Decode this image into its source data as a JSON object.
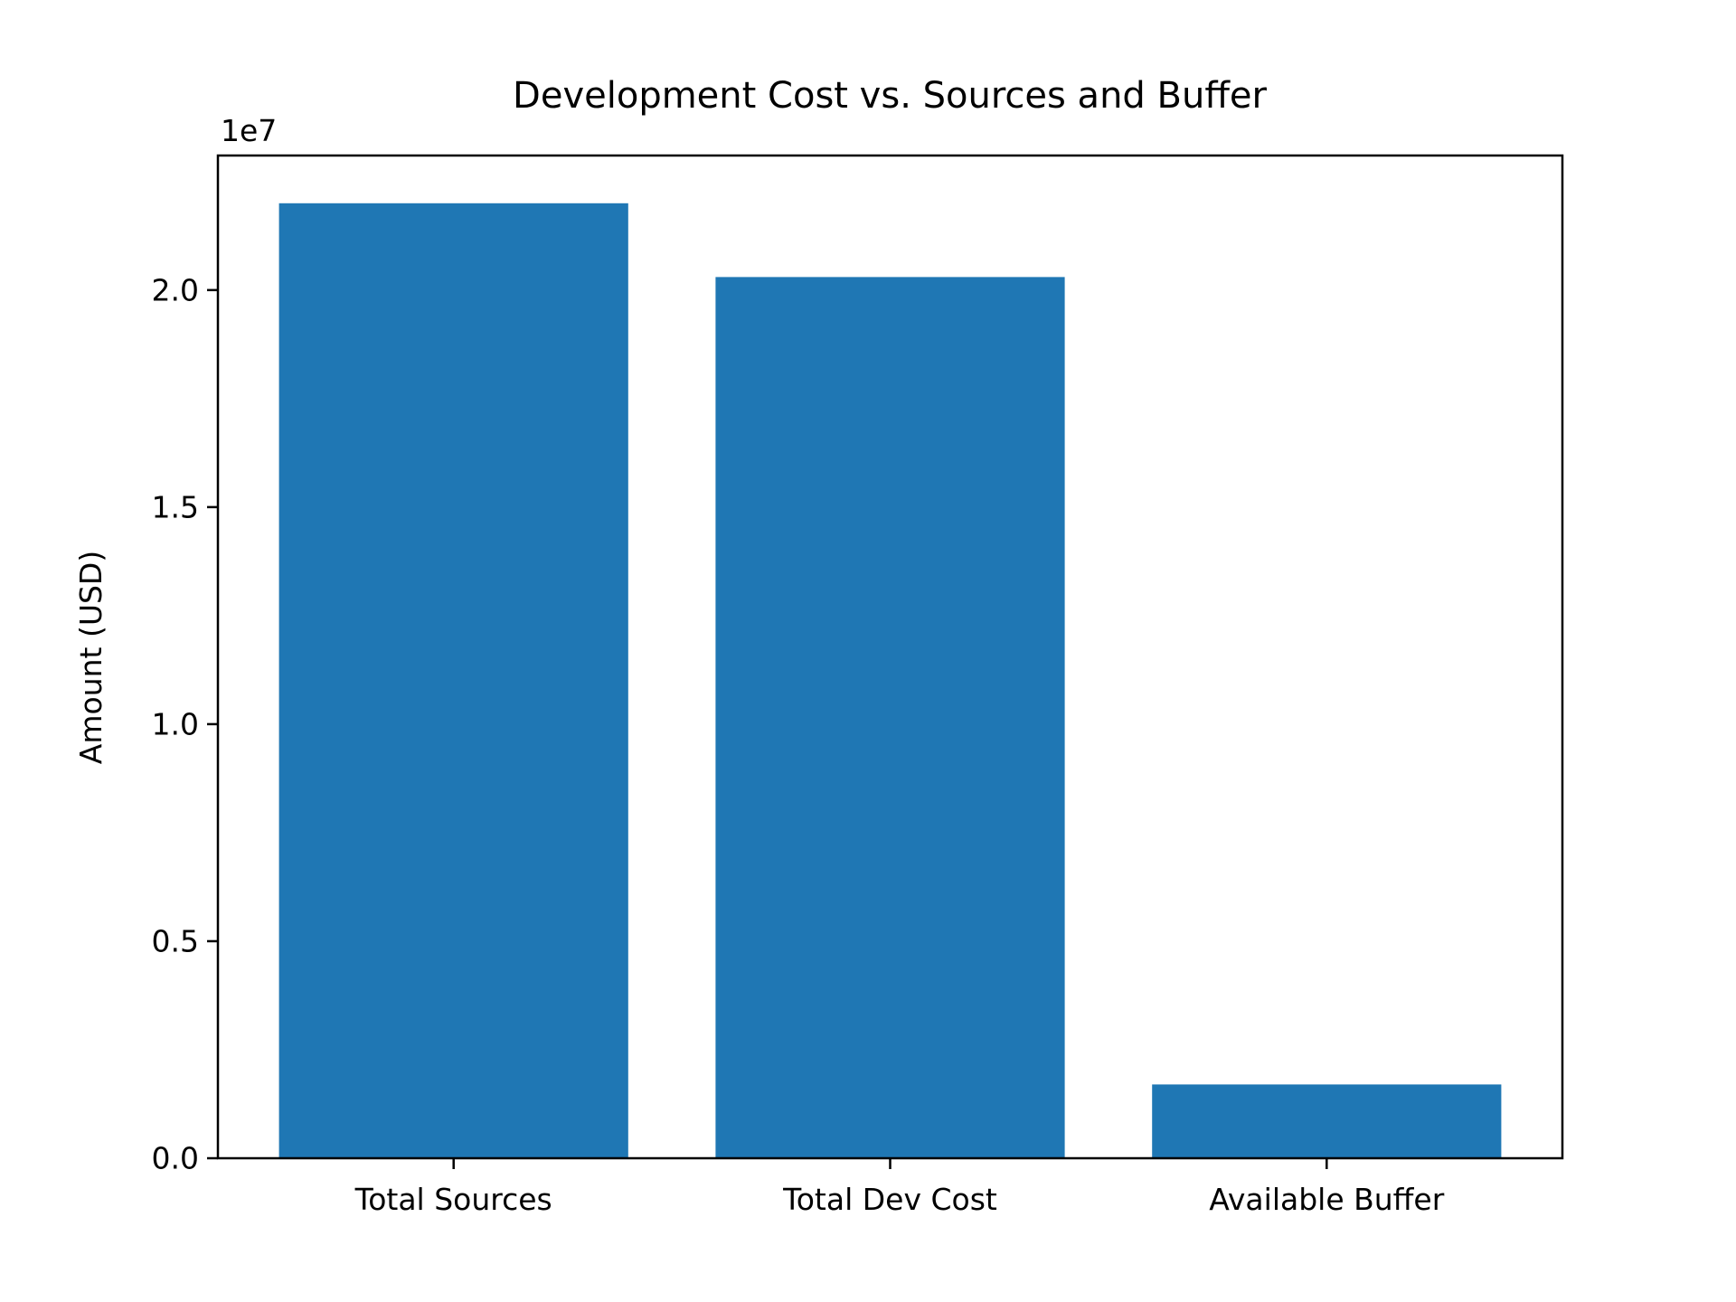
{
  "figure": {
    "background": "#ffffff"
  },
  "chart_data": {
    "type": "bar",
    "title": "Development Cost vs. Sources and Buffer",
    "categories": [
      "Total Sources",
      "Total Dev Cost",
      "Available Buffer"
    ],
    "values": [
      22000000,
      20300000,
      1700000
    ],
    "xlabel": "",
    "ylabel": "Amount (USD)",
    "offset_text": "1e7",
    "ylim": [
      0,
      23100000
    ],
    "yticks": [
      0,
      5000000,
      10000000,
      15000000,
      20000000
    ],
    "ytick_labels": [
      "0.0",
      "0.5",
      "1.0",
      "1.5",
      "2.0"
    ],
    "bar_color": "#1f77b4",
    "axis_color": "#000000",
    "grid": false,
    "legend": null
  }
}
